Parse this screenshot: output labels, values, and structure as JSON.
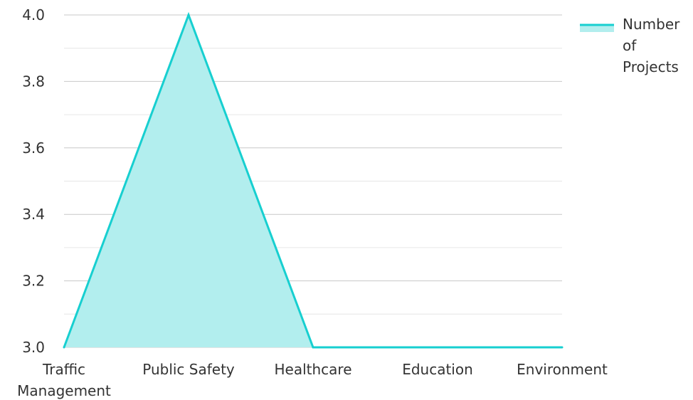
{
  "chart_data": {
    "type": "area",
    "categories": [
      [
        "Traffic",
        "Management"
      ],
      [
        "Public Safety"
      ],
      [
        "Healthcare"
      ],
      [
        "Education"
      ],
      [
        "Environment"
      ]
    ],
    "series": [
      {
        "name": "Number of Projects",
        "name_lines": [
          "Number",
          "of",
          "Projects"
        ],
        "values": [
          3.0,
          4.0,
          3.0,
          3.0,
          3.0
        ],
        "line_color": "#17cfd0",
        "fill_color": "#b2eeee"
      }
    ],
    "ylim": [
      3.0,
      4.0
    ],
    "yticks": [
      "3.0",
      "3.2",
      "3.4",
      "3.6",
      "3.8",
      "4.0"
    ],
    "ytick_values": [
      3.0,
      3.2,
      3.4,
      3.6,
      3.8,
      4.0
    ],
    "minor_grid_values": [
      3.1,
      3.3,
      3.5,
      3.7,
      3.9
    ],
    "grid": true,
    "legend_position": "top-right",
    "title": "",
    "xlabel": "",
    "ylabel": ""
  }
}
